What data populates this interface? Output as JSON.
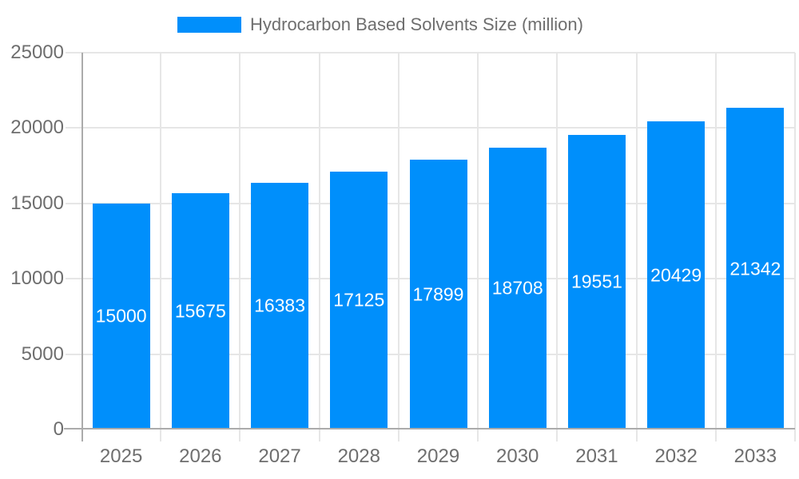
{
  "chart_data": {
    "type": "bar",
    "title": "",
    "legend_label": "Hydrocarbon Based Solvents Size (million)",
    "legend_position": "top",
    "categories": [
      "2025",
      "2026",
      "2027",
      "2028",
      "2029",
      "2030",
      "2031",
      "2032",
      "2033"
    ],
    "values": [
      15000,
      15675,
      16383,
      17125,
      17899,
      18708,
      19551,
      20429,
      21342
    ],
    "data_labels": [
      "15000",
      "15675",
      "16383",
      "17125",
      "17899",
      "18708",
      "19551",
      "20429",
      "21342"
    ],
    "data_label_position": "inside-center",
    "xlabel": "",
    "ylabel": "",
    "ylim": [
      0,
      25000
    ],
    "yticks": [
      0,
      5000,
      10000,
      15000,
      20000,
      25000
    ],
    "ytick_labels": [
      "0",
      "5000",
      "10000",
      "15000",
      "20000",
      "25000"
    ],
    "grid": true,
    "colors": {
      "bar": "#008FFB",
      "grid": "#e6e6e6",
      "axis": "#ababab",
      "tick_label": "#6e6e6e",
      "legend_text": "#6e6e6e",
      "data_label": "#ffffff",
      "background": "#ffffff"
    }
  }
}
